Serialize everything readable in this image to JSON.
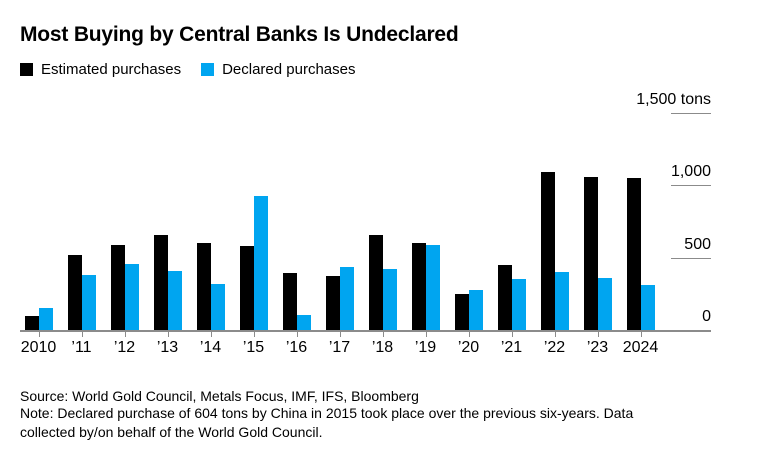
{
  "title": "Most Buying by Central Banks Is Undeclared",
  "source": "Source: World Gold Council, Metals Focus, IMF, IFS, Bloomberg",
  "note": "Note: Declared purchase of 604 tons by China in 2015 took place over the previous six-years. Data collected by/on behalf of the World Gold Council.",
  "colors": {
    "estimated": "#000000",
    "declared": "#00a5f0",
    "axis": "#8b8b8b",
    "background": "#ffffff",
    "text": "#000000"
  },
  "chart_data": {
    "type": "bar",
    "title": "Most Buying by Central Banks Is Undeclared",
    "unit": "tons",
    "categories": [
      "2010",
      "’11",
      "’12",
      "’13",
      "’14",
      "’15",
      "’16",
      "’17",
      "’18",
      "’19",
      "’20",
      "’21",
      "’22",
      "’23",
      "2024"
    ],
    "series": [
      {
        "name": "Estimated purchases",
        "color": "#000000",
        "values": [
          100,
          520,
          585,
          655,
          605,
          580,
          395,
          375,
          660,
          605,
          250,
          450,
          1095,
          1060,
          1050
        ]
      },
      {
        "name": "Declared purchases",
        "color": "#00a5f0",
        "values": [
          150,
          380,
          455,
          405,
          315,
          925,
          105,
          435,
          425,
          585,
          280,
          350,
          400,
          360,
          310
        ]
      }
    ],
    "ylim": [
      0,
      1500
    ],
    "y_ticks": [
      {
        "label": "1,500 tons",
        "value": 1500
      },
      {
        "label": "1,000",
        "value": 1000
      },
      {
        "label": "500",
        "value": 500
      },
      {
        "label": "0",
        "value": 0
      }
    ],
    "grid": false,
    "legend_position": "top-left",
    "y_axis_side": "right"
  }
}
